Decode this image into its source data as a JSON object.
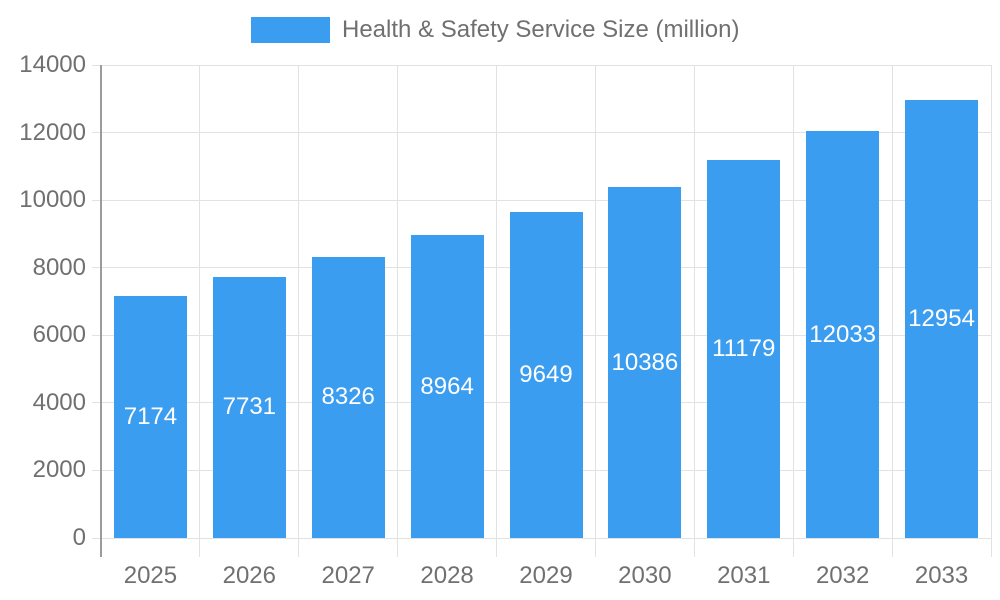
{
  "legend": {
    "label": "Health & Safety Service Size (million)"
  },
  "chart_data": {
    "type": "bar",
    "title": "Health & Safety Service Size (million)",
    "categories": [
      "2025",
      "2026",
      "2027",
      "2028",
      "2029",
      "2030",
      "2031",
      "2032",
      "2033"
    ],
    "values": [
      7174,
      7731,
      8326,
      8964,
      9649,
      10386,
      11179,
      12033,
      12954
    ],
    "series_name": "Health & Safety Service Size (million)",
    "xlabel": "",
    "ylabel": "",
    "ylim": [
      0,
      14000
    ],
    "yticks": [
      0,
      2000,
      4000,
      6000,
      8000,
      10000,
      12000,
      14000
    ],
    "grid": true,
    "legend_position": "top",
    "bar_color": "#3B9DF0",
    "value_label_color": "#FFFFFF",
    "axis_text_color": "#707070",
    "gridline_color": "#E2E2E2",
    "axis_line_color": "#9B9B9B"
  }
}
